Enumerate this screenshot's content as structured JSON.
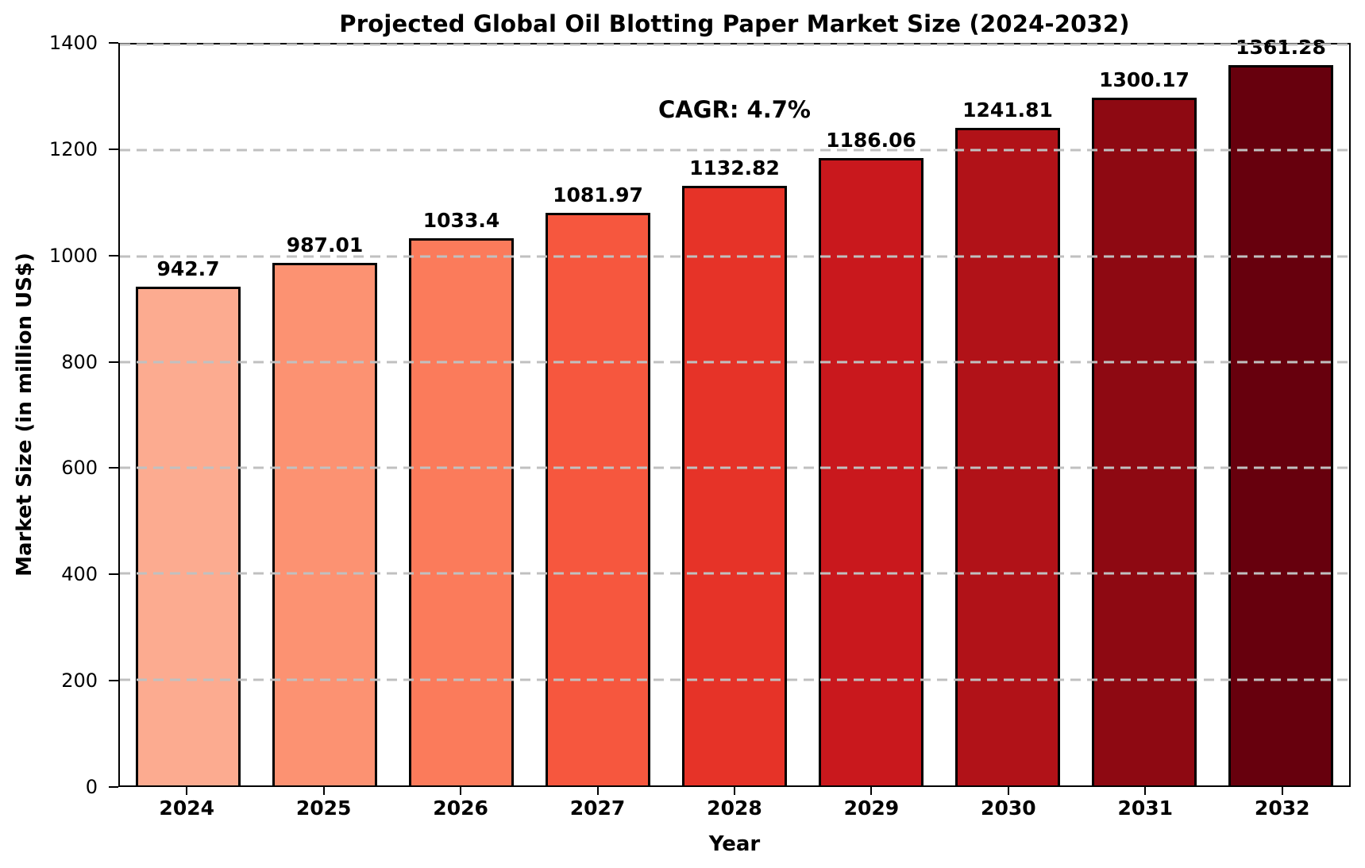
{
  "figure": {
    "background": "#ffffff"
  },
  "chart_data": {
    "type": "bar",
    "title": "Projected Global Oil Blotting Paper Market Size (2024-2032)",
    "xlabel": "Year",
    "ylabel": "Market Size (in million US$)",
    "categories": [
      "2024",
      "2025",
      "2026",
      "2027",
      "2028",
      "2029",
      "2030",
      "2031",
      "2032"
    ],
    "values": [
      942.7,
      987.01,
      1033.4,
      1081.97,
      1132.82,
      1186.06,
      1241.81,
      1300.17,
      1361.28
    ],
    "bar_labels": [
      "942.7",
      "987.01",
      "1033.4",
      "1081.97",
      "1132.82",
      "1186.06",
      "1241.81",
      "1300.17",
      "1361.28"
    ],
    "bar_colors": [
      "#fcab90",
      "#fc9272",
      "#fb7b5b",
      "#f6573e",
      "#e63328",
      "#c9181d",
      "#b11218",
      "#8e0912",
      "#67000d"
    ],
    "bar_edge_color": "#000000",
    "ylim": [
      0,
      1400
    ],
    "yticks": [
      0,
      200,
      400,
      600,
      800,
      1000,
      1200,
      1400
    ],
    "grid": {
      "axis": "y",
      "style": "dashed",
      "color": "#c0c0c0",
      "on_top_of_bars": true
    },
    "legend": "none",
    "annotation": {
      "text": "CAGR: 4.7%"
    },
    "text_color": "#000000",
    "spine_color": "#000000"
  }
}
